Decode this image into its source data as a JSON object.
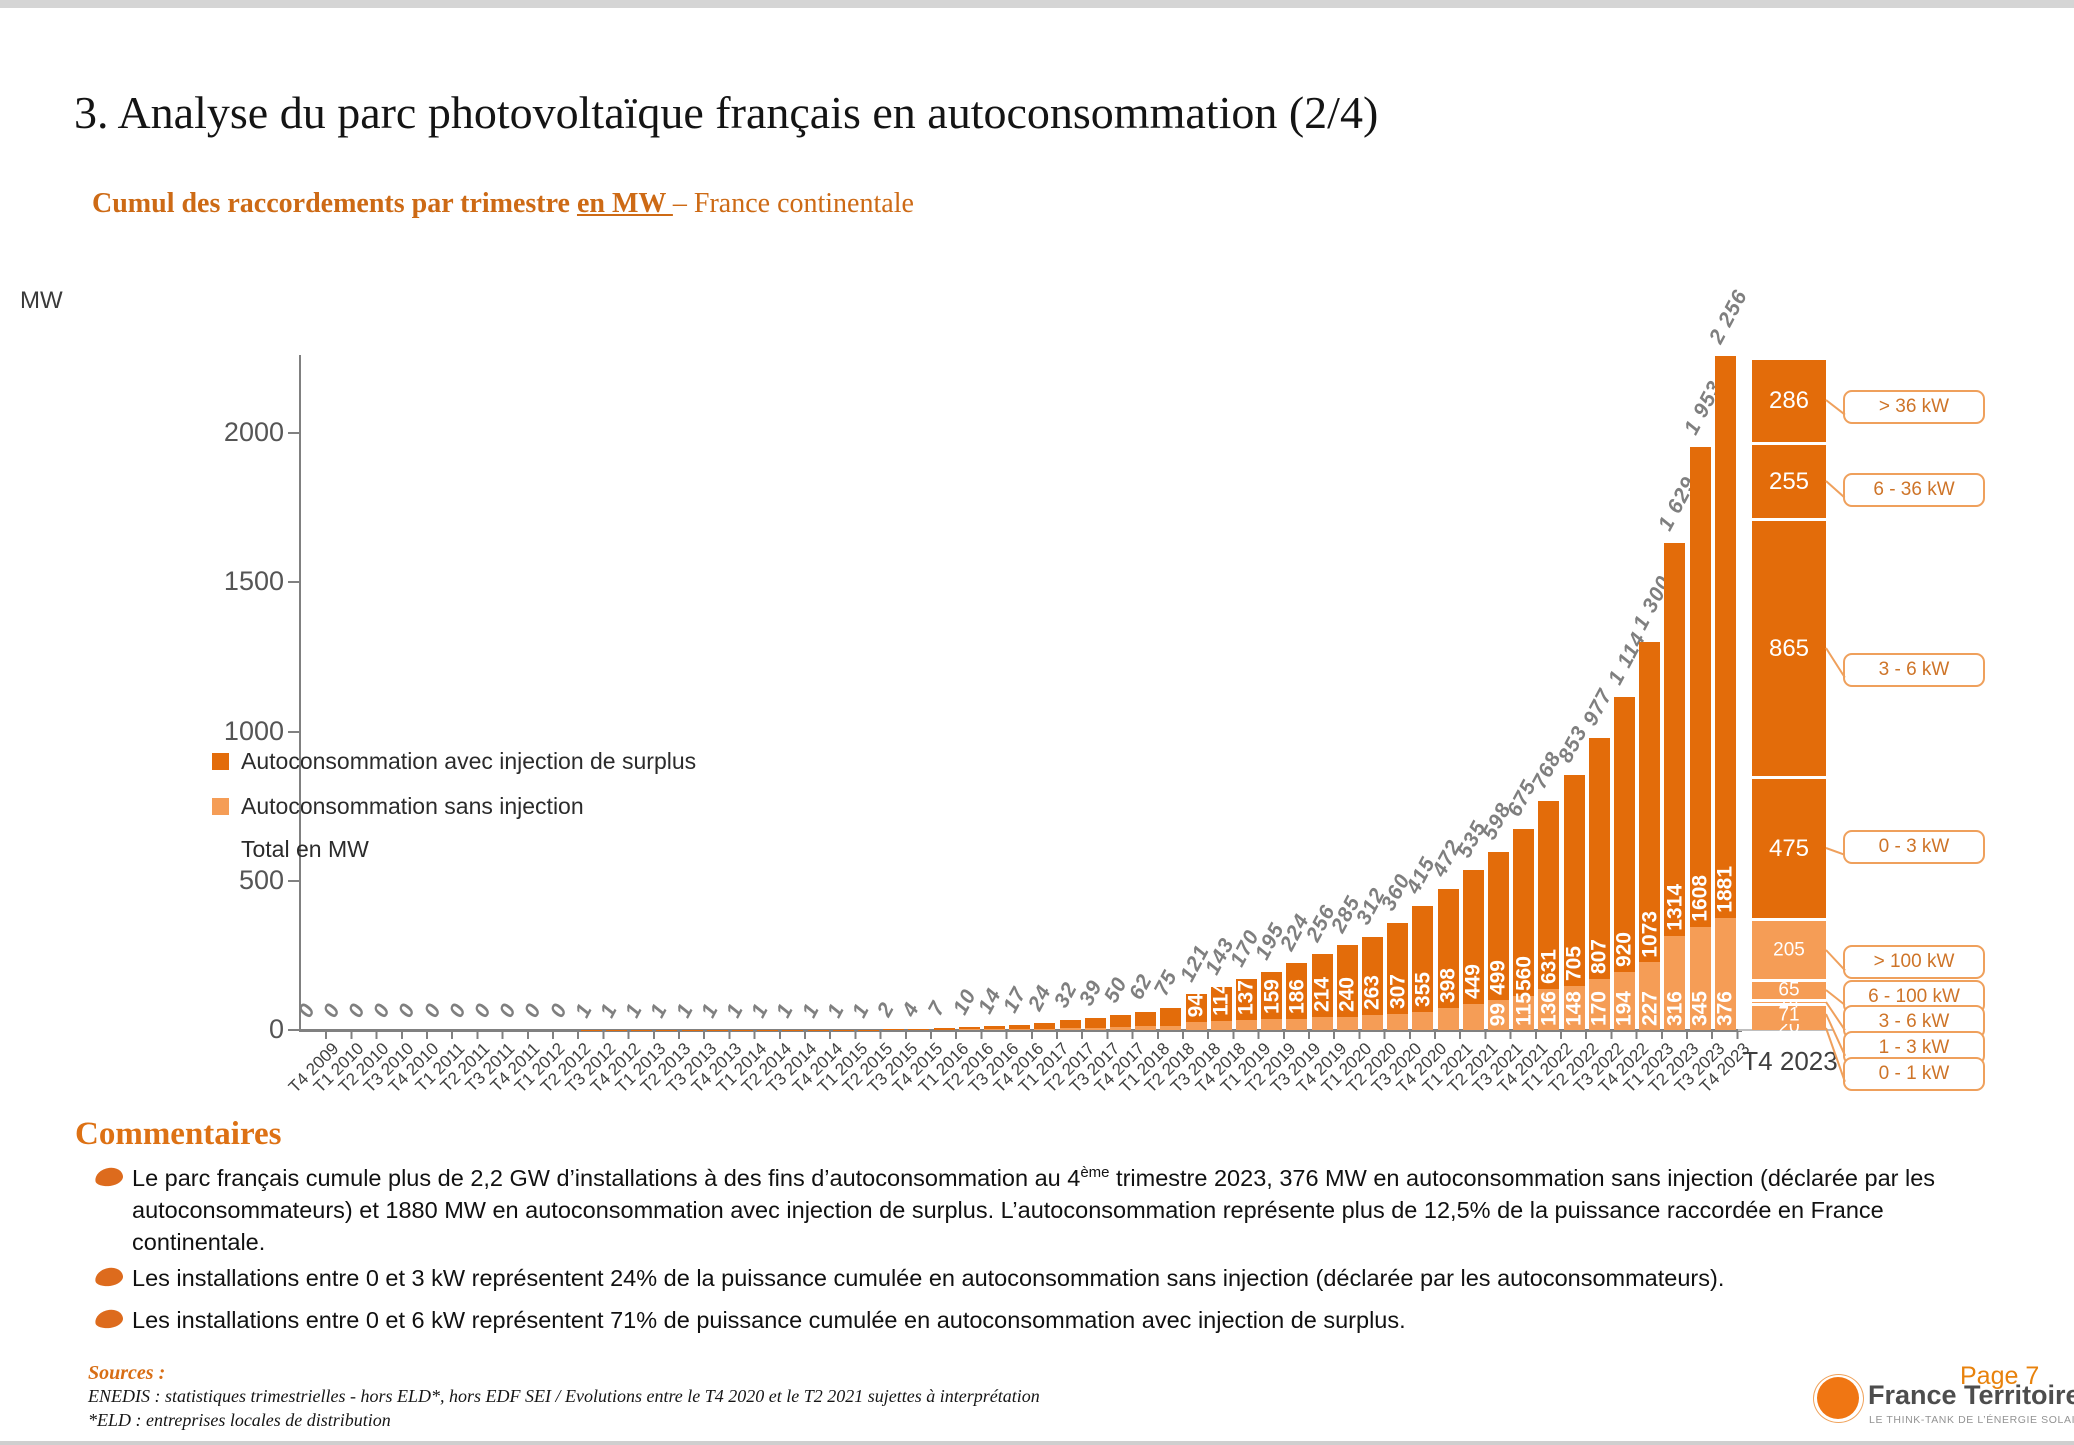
{
  "accent_color": "#d86e15",
  "slide": {
    "title": "3. Analyse du parc photovoltaïque français en autoconsommation (2/4)",
    "subtitle_bold": "Cumul des raccordements par trimestre ",
    "subtitle_underlined": "en MW ",
    "subtitle_rest": "– France continentale"
  },
  "chart_data": {
    "type": "bar",
    "stacked": true,
    "title": "Cumul des raccordements par trimestre en MW – France continentale",
    "ylabel": "MW",
    "xlabel": "",
    "grid": false,
    "legend_position": "inside-left",
    "yticks": [
      0,
      500,
      1000,
      1500,
      2000
    ],
    "ylim": [
      0,
      2260
    ],
    "categories": [
      "T4 2009",
      "T1 2010",
      "T2 2010",
      "T3 2010",
      "T4 2010",
      "T1 2011",
      "T2 2011",
      "T3 2011",
      "T4 2011",
      "T1 2012",
      "T2 2012",
      "T3 2012",
      "T4 2012",
      "T1 2013",
      "T2 2013",
      "T3 2013",
      "T4 2013",
      "T1 2014",
      "T2 2014",
      "T3 2014",
      "T4 2014",
      "T1 2015",
      "T2 2015",
      "T3 2015",
      "T4 2015",
      "T1 2016",
      "T2 2016",
      "T3 2016",
      "T4 2016",
      "T1 2017",
      "T2 2017",
      "T3 2017",
      "T4 2017",
      "T1 2018",
      "T2 2018",
      "T3 2018",
      "T4 2018",
      "T1 2019",
      "T2 2019",
      "T3 2019",
      "T4 2019",
      "T1 2020",
      "T2 2020",
      "T3 2020",
      "T4 2020",
      "T1 2021",
      "T2 2021",
      "T3 2021",
      "T4 2021",
      "T1 2022",
      "T2 2022",
      "T3 2022",
      "T4 2022",
      "T1 2023",
      "T2 2023",
      "T3 2023",
      "T4 2023"
    ],
    "series": [
      {
        "name": "Autoconsommation avec injection de surplus",
        "color": "#e36c0a",
        "values": [
          0,
          0,
          0,
          0,
          0,
          0,
          0,
          0,
          0,
          0,
          0,
          1,
          1,
          1,
          1,
          1,
          1,
          1,
          1,
          1,
          1,
          1,
          1,
          2,
          3,
          6,
          8,
          11,
          14,
          19,
          26,
          31,
          40,
          50,
          62,
          94,
          114,
          137,
          159,
          186,
          214,
          240,
          263,
          307,
          355,
          398,
          449,
          499,
          560,
          631,
          705,
          807,
          920,
          1073,
          1314,
          1608,
          1881
        ]
      },
      {
        "name": "Autoconsommation sans injection",
        "color": "#f59d56",
        "values": [
          0,
          0,
          0,
          0,
          0,
          0,
          0,
          0,
          0,
          0,
          0,
          0,
          0,
          0,
          0,
          0,
          0,
          0,
          0,
          0,
          0,
          0,
          0,
          0,
          1,
          1,
          2,
          3,
          3,
          5,
          6,
          8,
          10,
          12,
          13,
          27,
          29,
          33,
          36,
          38,
          42,
          45,
          49,
          53,
          60,
          74,
          86,
          99,
          115,
          136,
          148,
          170,
          194,
          227,
          316,
          345,
          376
        ]
      }
    ],
    "totals": [
      0,
      0,
      0,
      0,
      0,
      0,
      0,
      0,
      0,
      0,
      0,
      1,
      1,
      1,
      1,
      1,
      1,
      1,
      1,
      1,
      1,
      1,
      1,
      2,
      4,
      7,
      10,
      14,
      17,
      24,
      32,
      39,
      50,
      62,
      75,
      121,
      143,
      170,
      195,
      224,
      256,
      285,
      312,
      360,
      415,
      472,
      535,
      598,
      675,
      768,
      853,
      977,
      1114,
      1300,
      1629,
      1953,
      2256
    ],
    "total_labels": [
      "0",
      "0",
      "0",
      "0",
      "0",
      "0",
      "0",
      "0",
      "0",
      "0",
      "0",
      "1",
      "1",
      "1",
      "1",
      "1",
      "1",
      "1",
      "1",
      "1",
      "1",
      "1",
      "1",
      "2",
      "4",
      "7",
      "10",
      "14",
      "17",
      "24",
      "32",
      "39",
      "50",
      "62",
      "75",
      "121",
      "143",
      "170",
      "195",
      "224",
      "256",
      "285",
      "312",
      "360",
      "415",
      "472",
      "535",
      "598",
      "675",
      "768",
      "853",
      "977",
      "1 114",
      "1 300",
      "1 629",
      "1 953",
      "2 256"
    ],
    "legend": [
      "Autoconsommation avec injection de surplus",
      "Autoconsommation sans injection",
      "Total en MW"
    ],
    "detail_bar": {
      "category": "T4 2023",
      "dark_segments": [
        {
          "value": 286,
          "label": "> 36 kW"
        },
        {
          "value": 255,
          "label": "6 - 36 kW"
        },
        {
          "value": 865,
          "label": "3 - 6 kW"
        },
        {
          "value": 475,
          "label": "0 - 3 kW"
        }
      ],
      "light_segments": [
        {
          "value": 205,
          "label": "> 100 kW"
        },
        {
          "value": 65,
          "label": "6 - 100 kW"
        },
        {
          "value": 14,
          "label": "3 - 6 kW"
        },
        {
          "value": 71,
          "label": "1 - 3 kW"
        },
        {
          "value": 20,
          "label": "0 - 1 kW"
        }
      ]
    }
  },
  "comments": {
    "heading": "Commentaires",
    "bullet1_pre": "Le parc français cumule plus de 2,2 GW d’installations à des fins d’autoconsommation au 4",
    "bullet1_sup": "ème",
    "bullet1_post": " trimestre 2023, 376 MW en autoconsommation sans injection (déclarée par les autoconsommateurs) et 1880 MW en autoconsommation avec injection de surplus. L’autoconsommation représente plus de 12,5% de la puissance raccordée en France continentale.",
    "bullet2": "Les installations entre 0 et 3 kW représentent 24% de la puissance cumulée en autoconsommation sans injection (déclarée par les autoconsommateurs).",
    "bullet3": "Les installations entre 0 et 6 kW représentent 71% de puissance cumulée en autoconsommation avec injection de surplus."
  },
  "sources": {
    "label": "Sources :",
    "line1": "ENEDIS : statistiques trimestrielles - hors ELD*, hors EDF SEI / Evolutions entre le T4 2020 et le T2 2021 sujettes à interprétation",
    "line2": "*ELD : entreprises locales de distribution"
  },
  "footer": {
    "page": "Page 7",
    "logo_name": "France Territoire Solaire",
    "logo_tagline": "LE THINK-TANK DE L’ÉNERGIE SOLAIRE PHOTOVOLTAÏQUE"
  }
}
